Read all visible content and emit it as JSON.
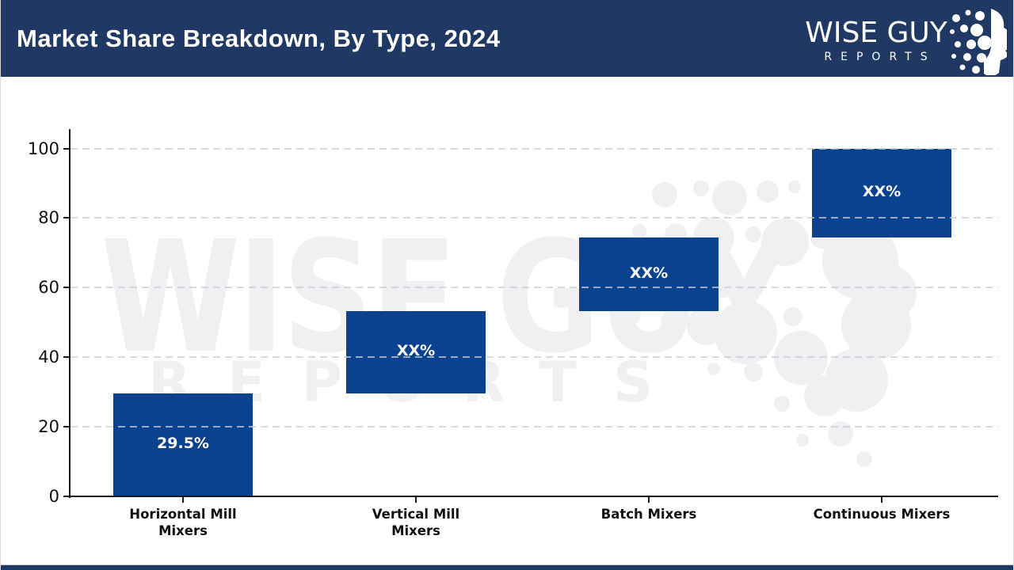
{
  "header": {
    "title": "Market Share Breakdown, By Type, 2024",
    "logo": {
      "name": "WISE GUY",
      "tagline": "REPORTS"
    }
  },
  "watermark": {
    "line1": "WISE GUY",
    "line2": "REPORTS"
  },
  "footer": {},
  "colors": {
    "header_bg": "#1f3864",
    "footer_bg": "#1f3864",
    "bar_blue": "#0a428f",
    "axis": "#1a1a1a",
    "tick_text": "#111111",
    "watermark": "#f0f0f3"
  },
  "chart_data": {
    "type": "bar",
    "subtype": "waterfall",
    "title": "Market Share Breakdown, By Type, 2024",
    "categories": [
      "Horizontal Mill Mixers",
      "Vertical Mill Mixers",
      "Batch Mixers",
      "Continuous Mixers"
    ],
    "category_lines": [
      [
        "Horizontal Mill",
        "Mixers"
      ],
      [
        "Vertical Mill",
        "Mixers"
      ],
      [
        "Batch Mixers"
      ],
      [
        "Continuous Mixers"
      ]
    ],
    "series": [
      {
        "name": "Market Share (%)",
        "segments": [
          {
            "category": "Horizontal Mill Mixers",
            "start": 0,
            "end": 29.5,
            "label": "29.5%"
          },
          {
            "category": "Vertical Mill Mixers",
            "start": 29.5,
            "end": 53.2,
            "label": "XX%"
          },
          {
            "category": "Batch Mixers",
            "start": 53.2,
            "end": 74.4,
            "label": "XX%"
          },
          {
            "category": "Continuous Mixers",
            "start": 74.4,
            "end": 100,
            "label": "XX%"
          }
        ]
      }
    ],
    "ylim": [
      0,
      100
    ],
    "yticks": [
      0,
      20,
      40,
      60,
      80,
      100
    ],
    "xlabel": "",
    "ylabel": "",
    "grid": {
      "horizontal": true,
      "style": "dashed",
      "drawn_over_bars": true
    },
    "legend": "none",
    "bar_color": "#0a428f",
    "bar_label_color": "#ffffff"
  }
}
